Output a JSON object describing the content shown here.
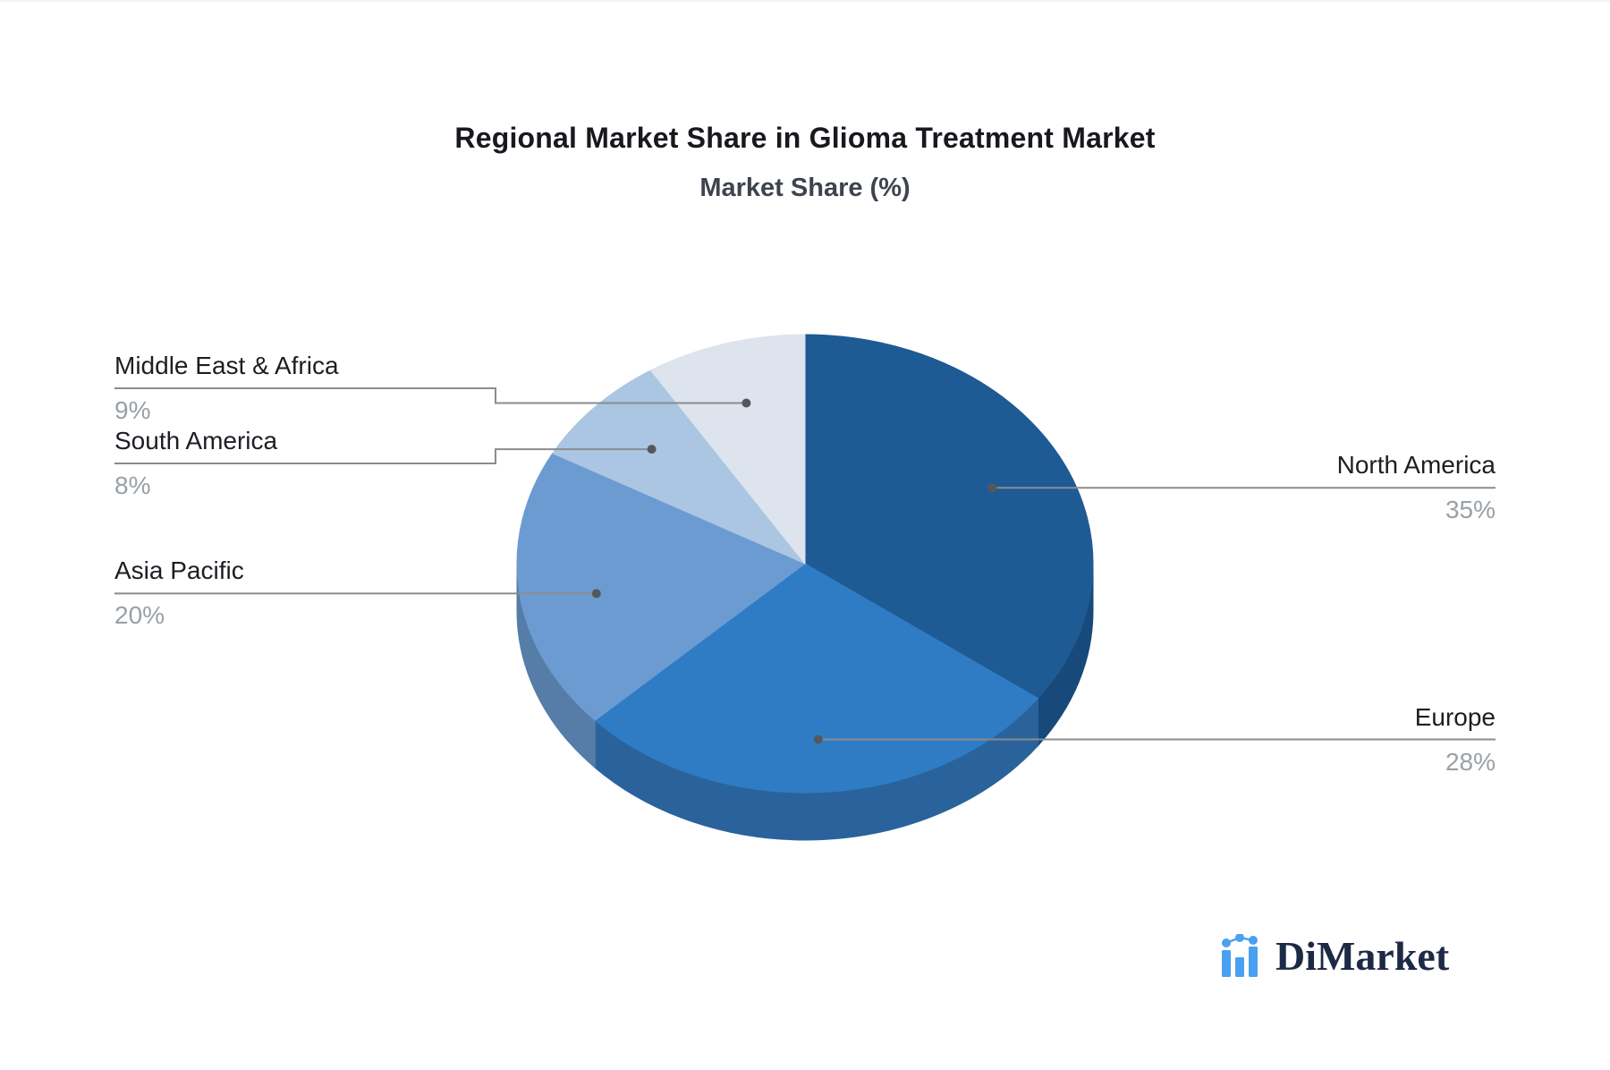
{
  "title": "Regional Market Share in Glioma Treatment Market",
  "subtitle": "Market Share (%)",
  "watermark": {
    "brand": "DiMarket"
  },
  "colors": {
    "background": "#ffffff",
    "title": "#17191e",
    "subtitle": "#3e444e",
    "label": "#1b1e23",
    "percent": "#9aa0a6",
    "leader_line": "#8a8c8f",
    "leader_dot": "#54585d",
    "logo_text": "#1d2a46",
    "logo_blue": "#4aa0f0"
  },
  "chart_data": {
    "type": "pie",
    "title": "Regional Market Share in Glioma Treatment Market",
    "subtitle": "Market Share (%)",
    "unit": "%",
    "effect": "3d",
    "start_angle_deg": 0,
    "direction": "clockwise",
    "legend": "none",
    "labels_layout": "callouts-with-leader-lines",
    "categories": [
      "North America",
      "Europe",
      "Asia Pacific",
      "South America",
      "Middle East & Africa"
    ],
    "values": [
      35,
      28,
      20,
      8,
      9
    ],
    "slices": [
      {
        "label": "North America",
        "value": 35,
        "pct_label": "35%",
        "color": "#1e5a94",
        "shade": "#17497b"
      },
      {
        "label": "Europe",
        "value": 28,
        "pct_label": "28%",
        "color": "#2f7cc4",
        "shade": "#2a639c"
      },
      {
        "label": "Asia Pacific",
        "value": 20,
        "pct_label": "20%",
        "color": "#6c9bd2",
        "shade": "#567ca8"
      },
      {
        "label": "South America",
        "value": 8,
        "pct_label": "8%",
        "color": "#aac6e2",
        "shade": "#8aa8c7"
      },
      {
        "label": "Middle East & Africa",
        "value": 9,
        "pct_label": "9%",
        "color": "#dde4ee",
        "shade": "#b9c3d3"
      }
    ]
  }
}
